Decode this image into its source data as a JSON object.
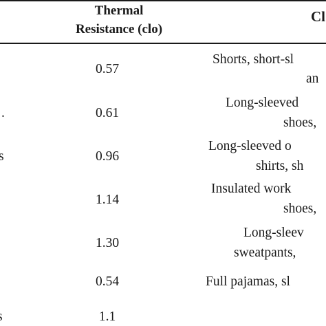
{
  "table": {
    "header": {
      "resistance_line1": "Thermal",
      "resistance_line2": "Resistance (clo)",
      "clothing_partial": "Cl"
    },
    "rows": [
      {
        "label": "",
        "value": "0.57",
        "desc_line1": "Shorts, short-sl",
        "desc_line2": "an"
      },
      {
        "label": ".",
        "value": "0.61",
        "desc_line1": "Long-sleeved",
        "desc_line2": "shoes,"
      },
      {
        "label": "s",
        "value": "0.96",
        "desc_line1": "Long-sleeved o",
        "desc_line2": "shirts, sh"
      },
      {
        "label": "",
        "value": "1.14",
        "desc_line1": "Insulated work",
        "desc_line2": "shoes,"
      },
      {
        "label": "",
        "value": "1.30",
        "desc_line1": "Long-sleev",
        "desc_line2": "sweatpants,"
      },
      {
        "label": "",
        "value": "0.54",
        "desc_line1": "Full pajamas, sl",
        "desc_line2": ""
      },
      {
        "label": "s",
        "value": "1.1",
        "desc_line1": "",
        "desc_line2": ""
      }
    ]
  }
}
